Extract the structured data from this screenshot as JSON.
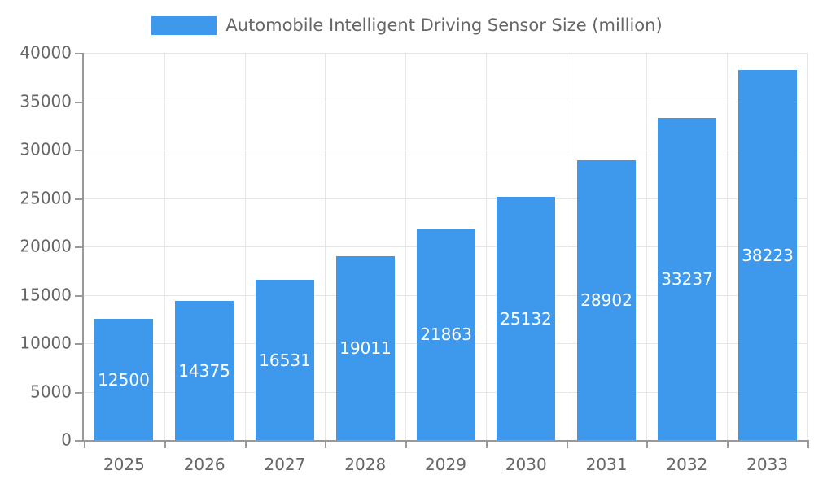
{
  "legend": {
    "label": "Automobile Intelligent Driving Sensor Size (million)"
  },
  "colors": {
    "bar": "#3E99ED",
    "grid": "#E6E6E6",
    "axis": "#999999",
    "text": "#666666",
    "value_label": "#FFFFFF",
    "background": "#FFFFFF"
  },
  "chart_data": {
    "type": "bar",
    "title": "Automobile Intelligent Driving Sensor Size (million)",
    "series_name": "Automobile Intelligent Driving Sensor Size (million)",
    "categories": [
      "2025",
      "2026",
      "2027",
      "2028",
      "2029",
      "2030",
      "2031",
      "2032",
      "2033"
    ],
    "values": [
      12500,
      14375,
      16531,
      19011,
      21863,
      25132,
      28902,
      33237,
      38223
    ],
    "xlabel": "",
    "ylabel": "",
    "ylim": [
      0,
      40000
    ],
    "ytick_step": 5000,
    "yticks": [
      0,
      5000,
      10000,
      15000,
      20000,
      25000,
      30000,
      35000,
      40000
    ],
    "grid": true,
    "legend_position": "top",
    "value_label_position": "inside-center",
    "value_label_color": "#FFFFFF"
  }
}
